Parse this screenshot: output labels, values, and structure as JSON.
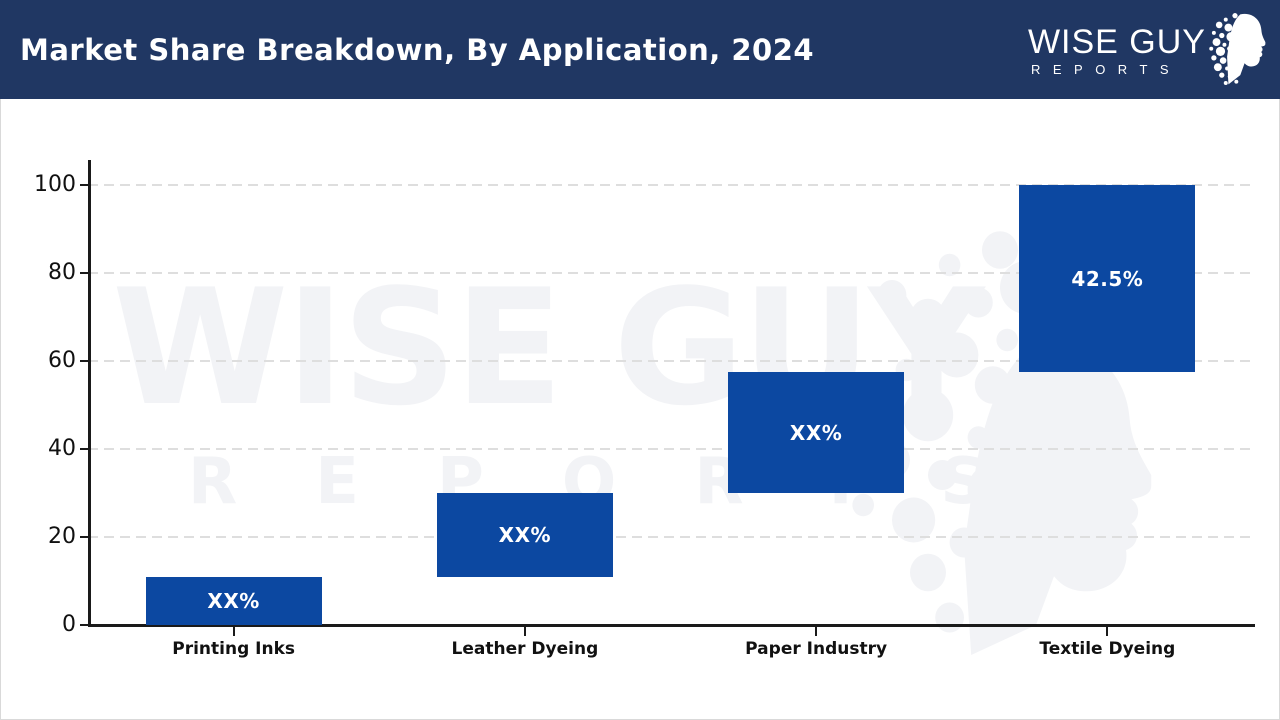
{
  "header": {
    "title": "Market Share Breakdown, By Application, 2024",
    "logo": {
      "line1": "WISE GUY",
      "line2": "REPORTS"
    }
  },
  "watermark": {
    "line1": "WISE GUY",
    "line2": "REPORTS"
  },
  "colors": {
    "header_bg": "#203763",
    "bar": "#0c48a1",
    "axis": "#1a1a1a",
    "grid": "#dedede",
    "watermark": "#f2f3f6",
    "border": "#d9d9d9"
  },
  "chart_data": {
    "type": "bar",
    "subtype": "waterfall-floating-bars",
    "title": "Market Share Breakdown, By Application, 2024",
    "categories": [
      "Printing Inks",
      "Leather Dyeing",
      "Paper Industry",
      "Textile Dyeing"
    ],
    "bars": [
      {
        "category": "Printing Inks",
        "start": 0,
        "end": 11,
        "label": "XX%"
      },
      {
        "category": "Leather Dyeing",
        "start": 11,
        "end": 30,
        "label": "XX%"
      },
      {
        "category": "Paper Industry",
        "start": 30,
        "end": 57.5,
        "label": "XX%"
      },
      {
        "category": "Textile Dyeing",
        "start": 57.5,
        "end": 100,
        "label": "42.5%"
      }
    ],
    "yticks": [
      0,
      20,
      40,
      60,
      80,
      100
    ],
    "ylim": [
      0,
      105
    ],
    "xlabel": "",
    "ylabel": "",
    "grid": "horizontal-dashed",
    "legend": false,
    "bar_color": "#0c48a1"
  }
}
